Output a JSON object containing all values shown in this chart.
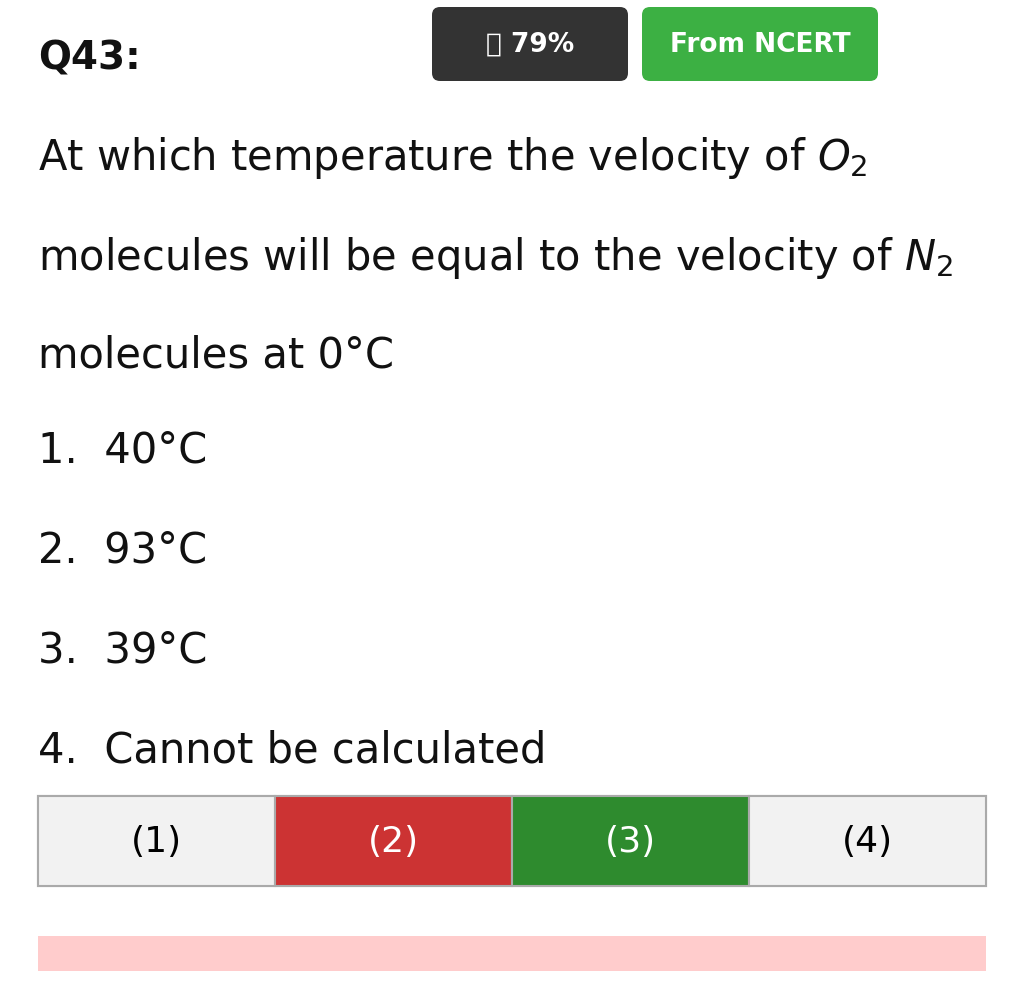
{
  "background_color": "#ffffff",
  "question_label": "Q43:",
  "badge_79_bg": "#333333",
  "badge_79_fg": "#ffffff",
  "badge_ncert_text": "From NCERT",
  "badge_ncert_bg": "#3cb043",
  "badge_ncert_fg": "#ffffff",
  "answer_buttons": [
    {
      "label": "(1)",
      "bg": "#f2f2f2",
      "fg": "#000000"
    },
    {
      "label": "(2)",
      "bg": "#cc3333",
      "fg": "#ffffff"
    },
    {
      "label": "(3)",
      "bg": "#2e8b2e",
      "fg": "#ffffff"
    },
    {
      "label": "(4)",
      "bg": "#f2f2f2",
      "fg": "#000000"
    }
  ],
  "bottom_bar_color": "#ffcccc",
  "main_fontsize": 30,
  "option_fontsize": 30,
  "q_label_fontsize": 28,
  "badge_fontsize": 19
}
